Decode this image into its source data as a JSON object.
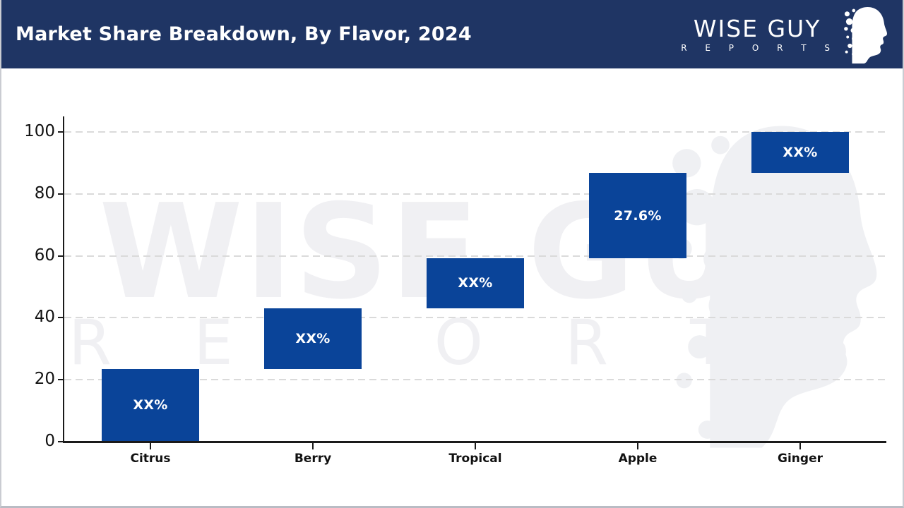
{
  "header": {
    "title": "Market Share Breakdown, By Flavor, 2024",
    "bg_color": "#1f3564",
    "logo": {
      "wordmark": "WISE GUY",
      "subtext": "R E P O R T S"
    }
  },
  "watermark": {
    "wordmark": "WISE GUY",
    "subtext": "REPORTS"
  },
  "chart_data": {
    "type": "bar",
    "subtype": "waterfall",
    "title": "Market Share Breakdown, By Flavor, 2024",
    "categories": [
      "Citrus",
      "Berry",
      "Tropical",
      "Apple",
      "Ginger"
    ],
    "bars": [
      {
        "category": "Citrus",
        "start": 0,
        "end": 23.5,
        "label": "XX%"
      },
      {
        "category": "Berry",
        "start": 23.5,
        "end": 43.1,
        "label": "XX%"
      },
      {
        "category": "Tropical",
        "start": 43.1,
        "end": 59.2,
        "label": "XX%"
      },
      {
        "category": "Apple",
        "start": 59.2,
        "end": 86.8,
        "label": "27.6%"
      },
      {
        "category": "Ginger",
        "start": 86.8,
        "end": 100,
        "label": "XX%"
      }
    ],
    "y_ticks": [
      0,
      20,
      40,
      60,
      80,
      100
    ],
    "ylim": [
      0,
      105
    ],
    "xlabel": "",
    "ylabel": "",
    "grid": "dashed-horizontal",
    "legend": "none",
    "bar_color": "#0a4499",
    "bar_label_color": "#ffffff",
    "grid_color": "#dadada",
    "axis_color": "#1a1a1a"
  }
}
